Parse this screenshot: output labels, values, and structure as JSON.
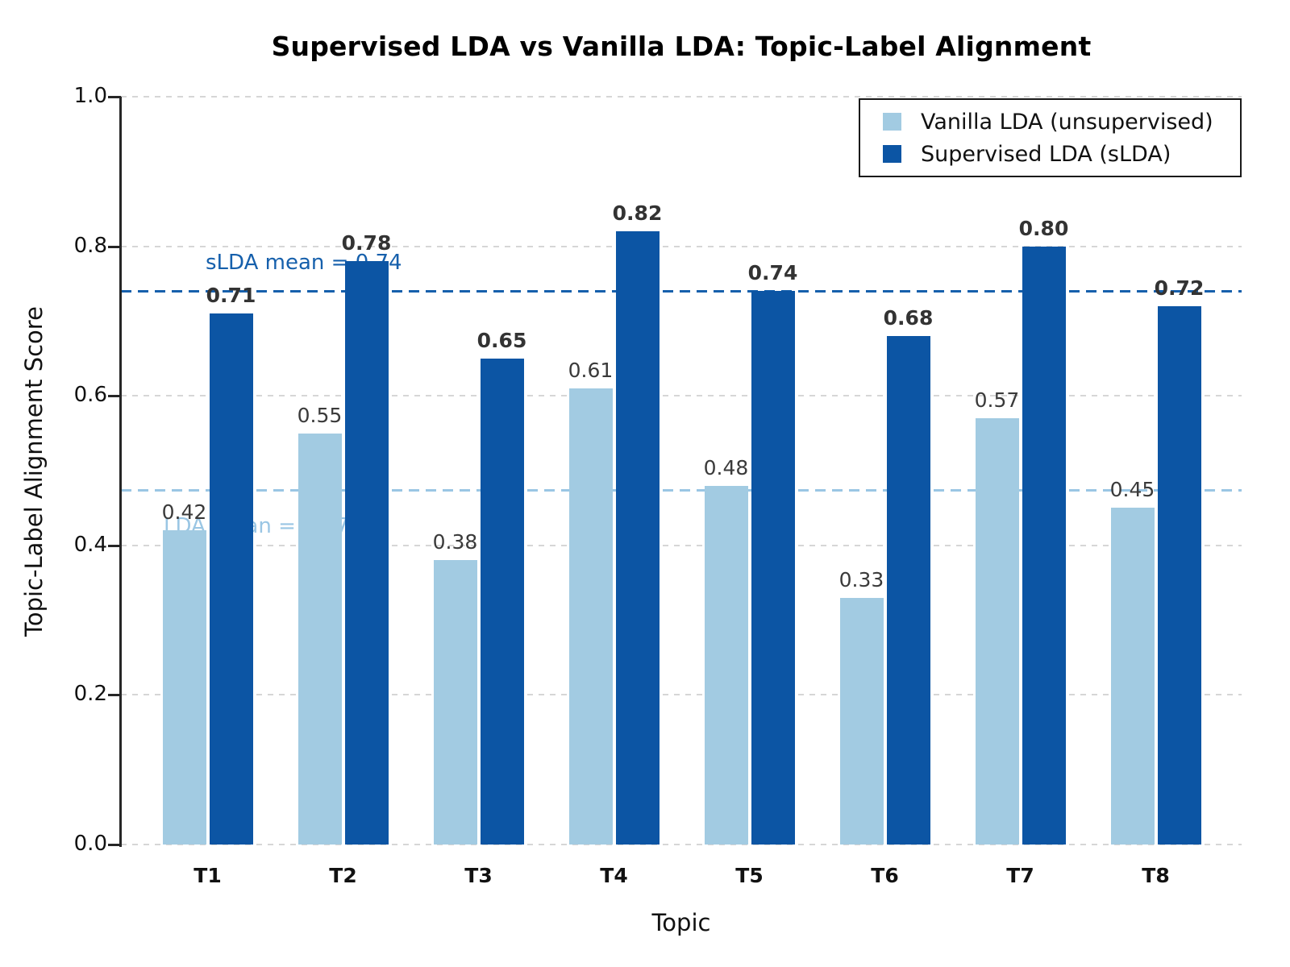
{
  "chart_data": {
    "type": "bar",
    "title": "Supervised LDA vs Vanilla LDA: Topic-Label Alignment",
    "xlabel": "Topic",
    "ylabel": "Topic-Label Alignment Score",
    "categories": [
      "T1",
      "T2",
      "T3",
      "T4",
      "T5",
      "T6",
      "T7",
      "T8"
    ],
    "series": [
      {
        "name": "Vanilla LDA (unsupervised)",
        "color": "#a2cbe2",
        "values": [
          0.42,
          0.55,
          0.38,
          0.61,
          0.48,
          0.33,
          0.57,
          0.45
        ]
      },
      {
        "name": "Supervised LDA (sLDA)",
        "color": "#0c55a4",
        "values": [
          0.71,
          0.78,
          0.65,
          0.82,
          0.74,
          0.68,
          0.8,
          0.72
        ]
      }
    ],
    "ylim": [
      0.0,
      1.0
    ],
    "yticks": [
      0.0,
      0.2,
      0.4,
      0.6,
      0.8,
      1.0
    ],
    "grid": "horizontal-dashed",
    "legend_position": "upper-right",
    "reference_lines": [
      {
        "name": "slda-mean",
        "label": "sLDA mean = 0.74",
        "value": 0.74,
        "color": "#1660ac",
        "label_side": "above"
      },
      {
        "name": "lda-mean",
        "label": "LDA mean = 0.47",
        "value": 0.474,
        "color": "#9ac6e4",
        "label_side": "below"
      }
    ]
  }
}
